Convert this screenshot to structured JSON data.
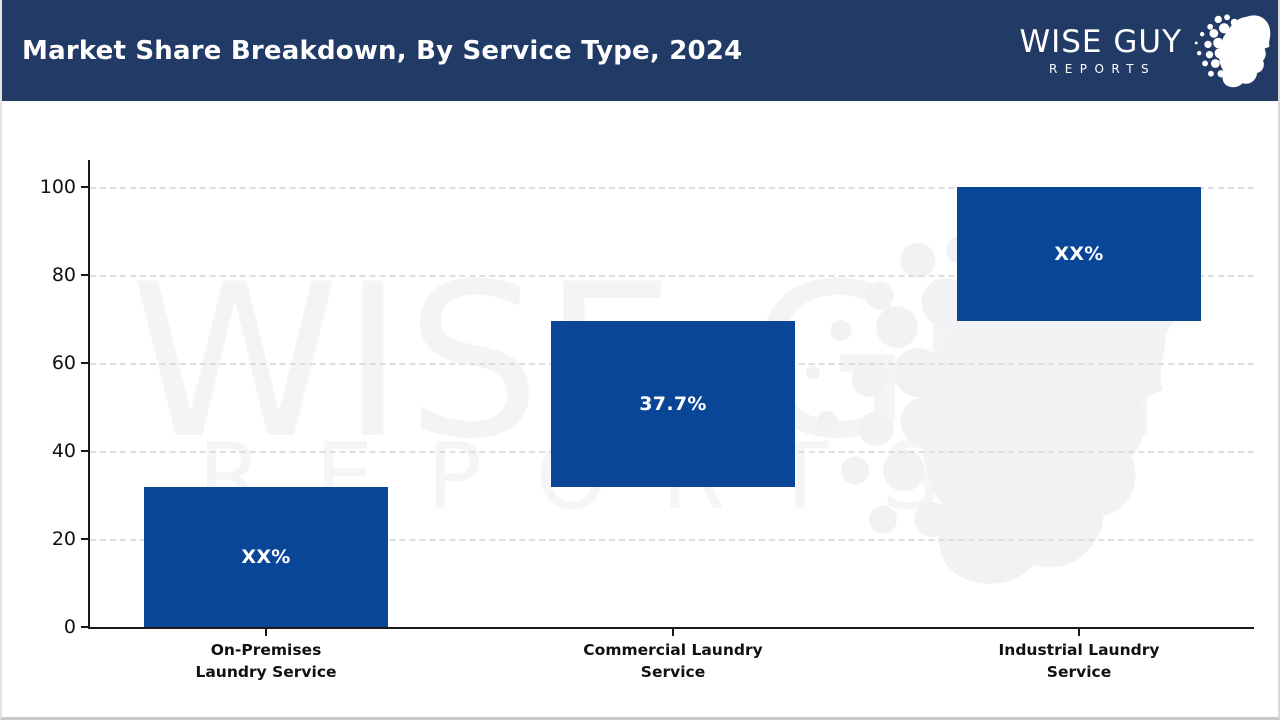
{
  "header": {
    "title": "Market Share Breakdown, By Service Type, 2024",
    "logo": {
      "name": "WISE GUY",
      "sub": "REPORTS"
    }
  },
  "watermark": {
    "name": "WISE GUY",
    "sub": "REPORTS"
  },
  "colors": {
    "header_bg": "#223a66",
    "bar": "#0a4697",
    "bar_label": "#ffffff",
    "grid": "#dedede",
    "axis": "#1a1a1a",
    "watermark": "#f4f4f6"
  },
  "chart_data": {
    "type": "bar",
    "variant": "stacked-waterfall-floating",
    "title": "Market Share Breakdown, By Service Type, 2024",
    "categories": [
      "On-Premises\nLaundry Service",
      "Commercial Laundry\nService",
      "Industrial Laundry\nService"
    ],
    "segments": [
      {
        "category": "On-Premises Laundry Service",
        "start": 0,
        "end": 31.8,
        "value_label": "XX%"
      },
      {
        "category": "Commercial Laundry Service",
        "start": 31.8,
        "end": 69.5,
        "value_label": "37.7%",
        "value": 37.7
      },
      {
        "category": "Industrial Laundry Service",
        "start": 69.5,
        "end": 100,
        "value_label": "XX%"
      }
    ],
    "ylim": [
      0,
      100
    ],
    "yticks": [
      0,
      20,
      40,
      60,
      80,
      100
    ],
    "xlabel": "",
    "ylabel": "",
    "grid": "horizontal-dashed",
    "legend": "none",
    "bar_color": "#0a4697",
    "bar_label_color": "#ffffff"
  }
}
